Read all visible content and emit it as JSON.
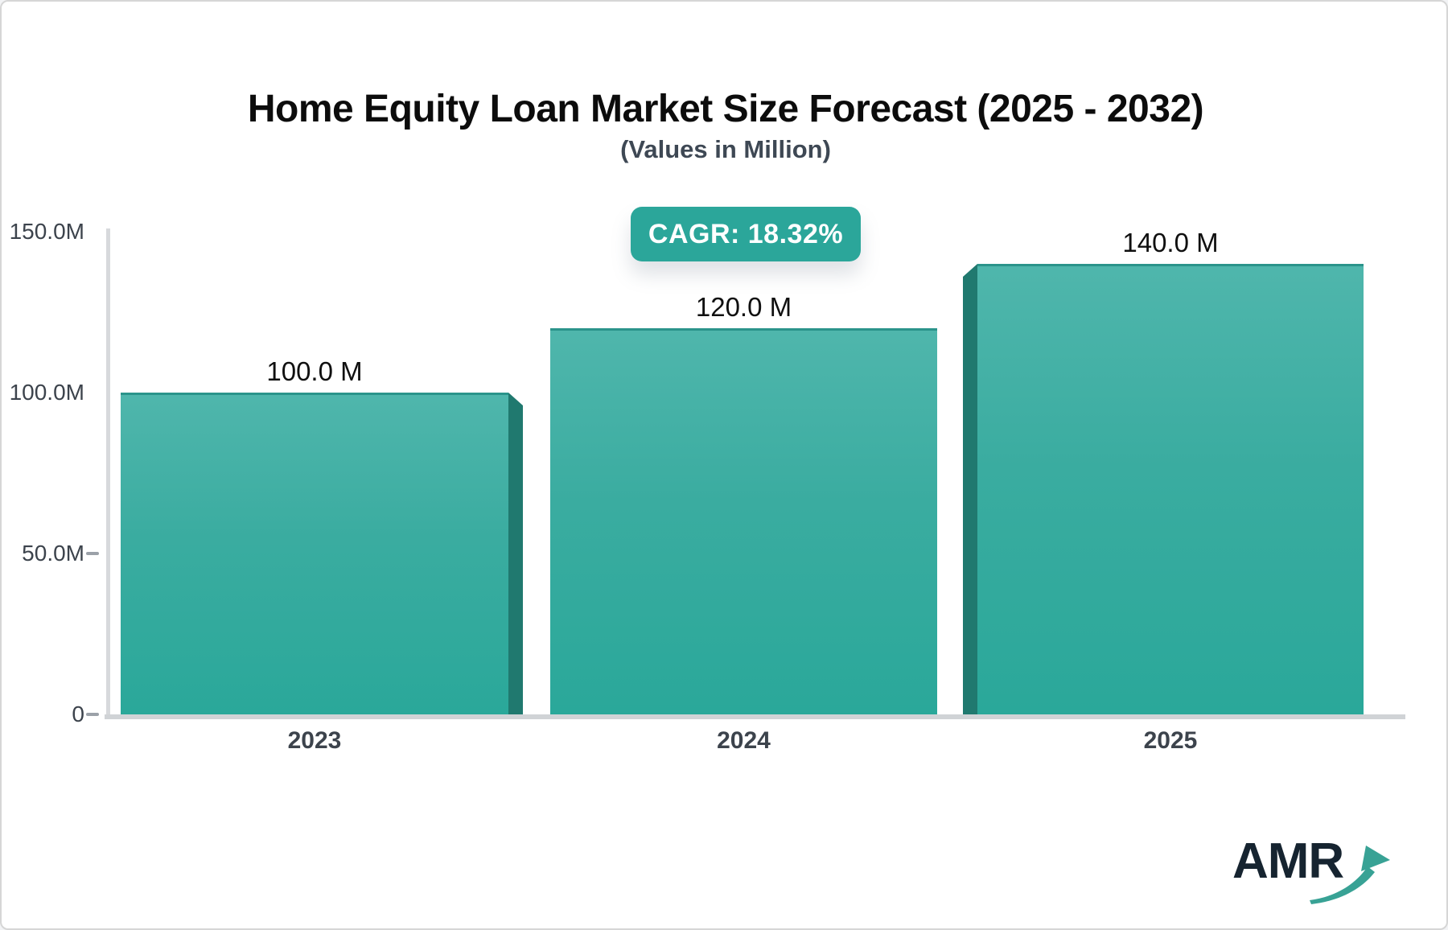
{
  "header": {
    "title": "Home Equity Loan Market Size Forecast (2025 - 2032)",
    "subtitle": "(Values in Million)"
  },
  "badge": {
    "label": "CAGR: 18.32%",
    "background": "#2BA69A",
    "text_color": "#FFFFFF"
  },
  "chart_data": {
    "type": "bar",
    "title": "Home Equity Loan Market Size Forecast (2025 - 2032)",
    "subtitle": "(Values in Million)",
    "unit": "Million",
    "categories": [
      "2023",
      "2024",
      "2025"
    ],
    "values": [
      100.0,
      120.0,
      140.0
    ],
    "value_labels": [
      "100.0 M",
      "120.0 M",
      "140.0 M"
    ],
    "annotation": "CAGR: 18.32%",
    "ylim": [
      0,
      150
    ],
    "yticks": [
      150,
      50,
      0,
      100
    ],
    "ytick_labels": [
      "150.0M",
      "100.0M",
      "50.0M",
      "0"
    ],
    "ytick_values_in_label_order": [
      150,
      100,
      50,
      0
    ],
    "grid": false,
    "legend": false,
    "bar_fill_top": "#4FB6AC",
    "bar_fill_bottom": "#2AA89A",
    "bar_3d_edge_color": "#20796F"
  },
  "colors": {
    "title": "#0C0C0C",
    "subtitle": "#3E4854",
    "axis_text": "#3C434C",
    "axis_line": "#D0D3D6",
    "background": "#FFFFFF"
  },
  "logo": {
    "text": "AMR",
    "arrow_icon": "trend-up-arrow",
    "text_color": "#162430",
    "arrow_color": "#38A295"
  }
}
